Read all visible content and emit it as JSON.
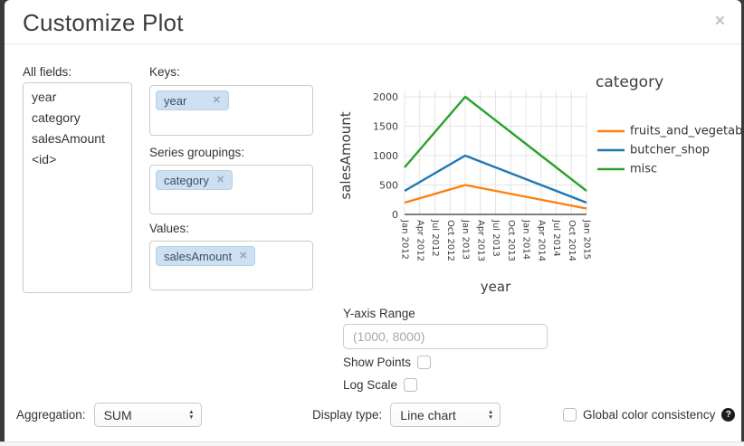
{
  "dialog": {
    "title": "Customize Plot",
    "close_glyph": "×"
  },
  "fields_panel": {
    "label": "All fields:",
    "items": [
      "year",
      "category",
      "salesAmount",
      "<id>"
    ]
  },
  "mapping": {
    "keys": {
      "label": "Keys:",
      "tags": [
        "year"
      ]
    },
    "series": {
      "label": "Series groupings:",
      "tags": [
        "category"
      ]
    },
    "values": {
      "label": "Values:",
      "tags": [
        "salesAmount"
      ]
    }
  },
  "tag_remove_glyph": "✕",
  "y_axis_range": {
    "label": "Y-axis Range",
    "placeholder": "(1000, 8000)",
    "value": ""
  },
  "options": {
    "show_points": {
      "label": "Show Points",
      "checked": false
    },
    "log_scale": {
      "label": "Log Scale",
      "checked": false
    },
    "aggregation": {
      "label": "Aggregation:",
      "value": "SUM"
    },
    "display_type": {
      "label": "Display type:",
      "value": "Line chart"
    },
    "global_color": {
      "label": "Global color consistency",
      "checked": false,
      "help_glyph": "?"
    }
  },
  "chart_data": {
    "type": "line",
    "xlabel": "year",
    "ylabel": "salesAmount",
    "legend_title": "category",
    "legend_position": "right",
    "grid": true,
    "ylim": [
      0,
      2000
    ],
    "y_ticks": [
      0,
      500,
      1000,
      1500,
      2000
    ],
    "x_ticks": [
      "Jan 2012",
      "Apr 2012",
      "Jul 2012",
      "Oct 2012",
      "Jan 2013",
      "Apr 2013",
      "Jul 2013",
      "Oct 2013",
      "Jan 2014",
      "Apr 2014",
      "Jul 2014",
      "Oct 2014",
      "Jan 2015"
    ],
    "x": [
      "Jan 2012",
      "Jan 2013",
      "Jan 2014",
      "Jan 2015"
    ],
    "series": [
      {
        "name": "fruits_and_vegetables",
        "color": "#ff7f0e",
        "values": [
          200,
          500,
          300,
          100
        ]
      },
      {
        "name": "butcher_shop",
        "color": "#1f77b4",
        "values": [
          400,
          1000,
          600,
          200
        ]
      },
      {
        "name": "misc",
        "color": "#2ca02c",
        "values": [
          800,
          2000,
          1200,
          400
        ]
      }
    ]
  },
  "colors": {
    "tag_background": "#cde0f1",
    "gridline": "#e4e4e4",
    "axis": "#333333",
    "backdrop": "#3a3a3a"
  }
}
